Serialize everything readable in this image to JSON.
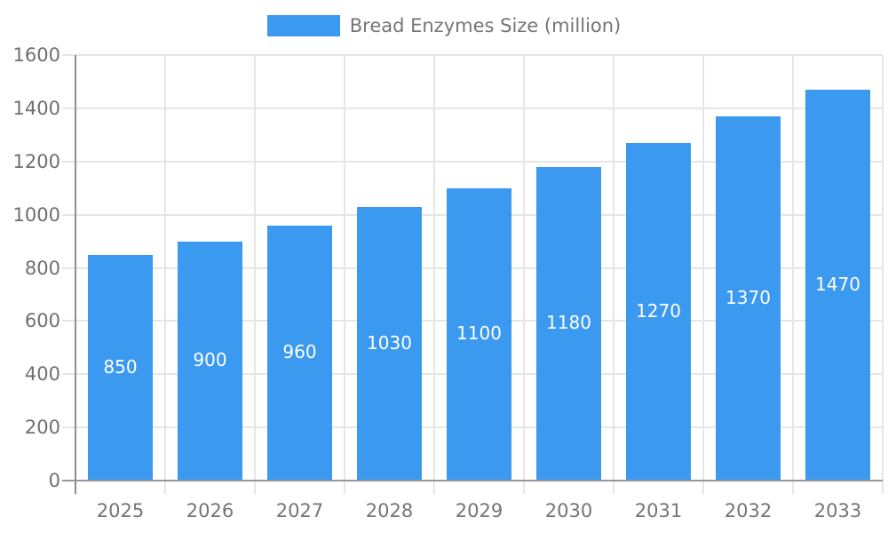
{
  "chart_data": {
    "type": "bar",
    "title": "Bread Enzymes Size (million)",
    "legend": {
      "label": "Bread Enzymes Size (million)",
      "position": "top"
    },
    "categories": [
      "2025",
      "2026",
      "2027",
      "2028",
      "2029",
      "2030",
      "2031",
      "2032",
      "2033"
    ],
    "values": [
      850,
      900,
      960,
      1030,
      1100,
      1180,
      1270,
      1370,
      1470
    ],
    "value_labels": [
      "850",
      "900",
      "960",
      "1030",
      "1100",
      "1180",
      "1270",
      "1370",
      "1470"
    ],
    "xlabel": "",
    "ylabel": "",
    "ylim": [
      0,
      1600
    ],
    "y_ticks": [
      0,
      200,
      400,
      600,
      800,
      1000,
      1200,
      1400,
      1600
    ],
    "grid": true
  },
  "colors": {
    "bar": "#3b99f0",
    "grid": "#e6e6e6",
    "axis": "#949494",
    "tick_text": "#757575",
    "value_text": "#ffffff",
    "legend_text": "#757575",
    "background": "#ffffff"
  }
}
